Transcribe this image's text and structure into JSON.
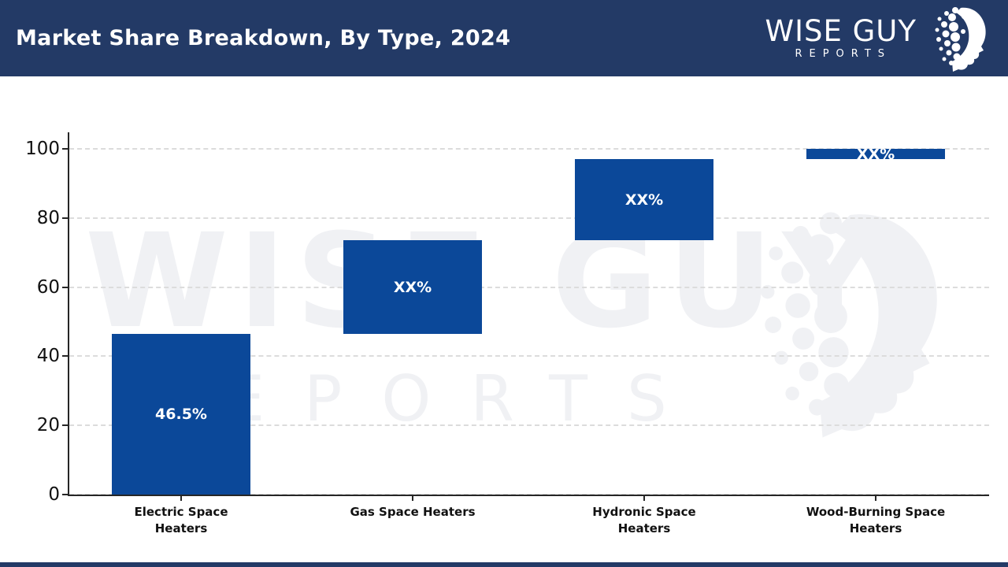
{
  "header": {
    "title": "Market Share Breakdown, By Type, 2024",
    "logo": {
      "line1": "WISE GUY",
      "line2": "REPORTS"
    }
  },
  "watermark": {
    "line1": "WISE GUY",
    "line2": "REPORTS"
  },
  "chart_data": {
    "type": "bar",
    "subtype": "waterfall",
    "title": "Market Share Breakdown, By Type, 2024",
    "categories": [
      "Electric Space\nHeaters",
      "Gas Space Heaters",
      "Hydronic Space\nHeaters",
      "Wood-Burning Space\nHeaters"
    ],
    "segments": [
      {
        "category": "Electric Space Heaters",
        "start": 0,
        "end": 46.5,
        "label": "46.5%"
      },
      {
        "category": "Gas Space Heaters",
        "start": 46.5,
        "end": 73.5,
        "label": "XX%"
      },
      {
        "category": "Hydronic Space Heaters",
        "start": 73.5,
        "end": 97,
        "label": "XX%"
      },
      {
        "category": "Wood-Burning Space Heaters",
        "start": 97,
        "end": 100,
        "label": "XX%"
      }
    ],
    "value_labels": [
      "46.5%",
      "XX%",
      "XX%",
      "XX%"
    ],
    "yticks": [
      0,
      20,
      40,
      60,
      80,
      100
    ],
    "ylim": [
      0,
      105
    ],
    "xlabel": "",
    "ylabel": "",
    "grid": "horizontal-dashed",
    "legend": "none",
    "bar_color": "#0b4899",
    "label_color": "#ffffff",
    "axis_color": "#262626",
    "grid_color": "#dcdcdc"
  },
  "colors": {
    "header_background": "#233a66",
    "footer_background": "#233a66",
    "title_text": "#ffffff",
    "watermark": "#f0f1f4",
    "page_background": "#ffffff"
  }
}
